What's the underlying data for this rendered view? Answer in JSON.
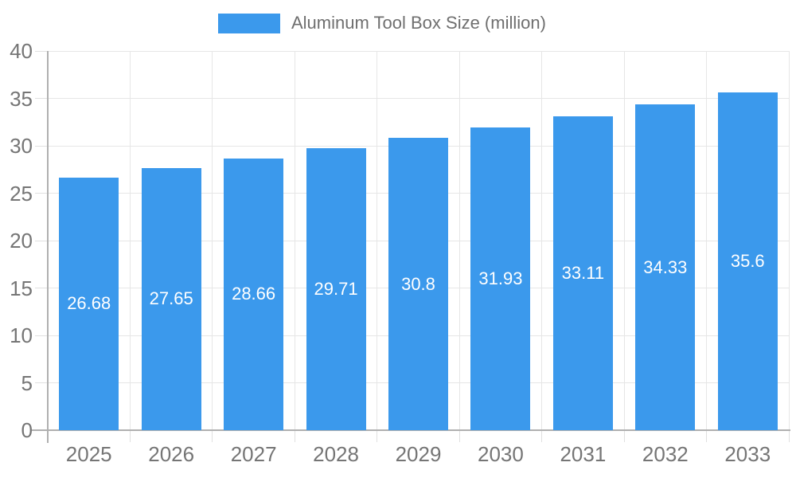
{
  "legend": {
    "label": "Aluminum Tool Box Size (million)"
  },
  "colors": {
    "bar": "#3B99EC",
    "grid": "#E6E6E6",
    "tick": "#E0E0E0",
    "axis": "#B0B0B0",
    "axis_text": "#757575",
    "bar_label": "#FFFFFF",
    "background": "#FFFFFF"
  },
  "chart_data": {
    "type": "bar",
    "title": "",
    "xlabel": "",
    "ylabel": "",
    "legend_entries": [
      "Aluminum Tool Box Size (million)"
    ],
    "legend_position": "top",
    "grid": true,
    "categories": [
      "2025",
      "2026",
      "2027",
      "2028",
      "2029",
      "2030",
      "2031",
      "2032",
      "2033"
    ],
    "series": [
      {
        "name": "Aluminum Tool Box Size (million)",
        "values": [
          26.68,
          27.65,
          28.66,
          29.71,
          30.8,
          31.93,
          33.11,
          34.33,
          35.6
        ]
      }
    ],
    "bar_value_labels": [
      "26.68",
      "27.65",
      "28.66",
      "29.71",
      "30.8",
      "31.93",
      "33.11",
      "34.33",
      "35.6"
    ],
    "ylim": [
      0,
      40
    ],
    "yticks": [
      0,
      5,
      10,
      15,
      20,
      25,
      30,
      35,
      40
    ]
  }
}
